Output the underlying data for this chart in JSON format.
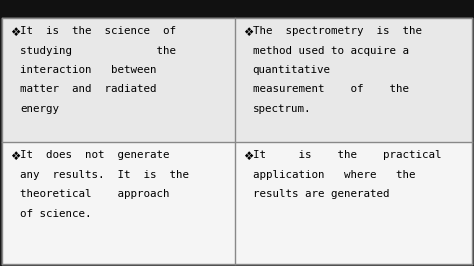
{
  "bg_color": "#1a1a1a",
  "cell_bg_top": "#e8e8e8",
  "cell_bg_bottom": "#f5f5f5",
  "border_color": "#888888",
  "text_color": "#000000",
  "bullet": "❖",
  "top_left_lines": [
    "It  is  the  science  of",
    "studying             the",
    "interaction   between",
    "matter  and  radiated",
    "energy"
  ],
  "top_right_lines": [
    "The  spectrometry  is  the",
    "method used to acquire a",
    "quantitative",
    "measurement    of    the",
    "spectrum."
  ],
  "bottom_left_lines": [
    "It  does  not  generate",
    "any  results.  It  is  the",
    "theoretical    approach",
    "of science."
  ],
  "bottom_right_lines": [
    "It     is    the    practical",
    "application   where   the",
    "results are generated"
  ],
  "font_size": 7.8,
  "fig_width": 4.74,
  "fig_height": 2.66,
  "dpi": 100
}
